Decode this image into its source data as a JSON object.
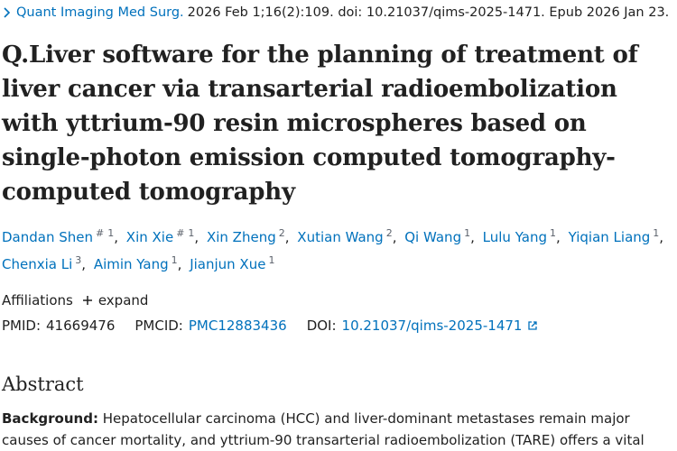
{
  "citation": {
    "journal": "Quant Imaging Med Surg.",
    "details": "2026 Feb 1;16(2):109. doi: 10.21037/qims-2025-1471. Epub 2026 Jan 23."
  },
  "title": "Q.Liver software for the planning of treatment of liver cancer via transarterial radioembolization with yttrium-90 resin microspheres based on single-photon emission computed tomography-computed tomography",
  "authors": [
    {
      "name": "Dandan Shen",
      "marks": [
        "#",
        "1"
      ]
    },
    {
      "name": "Xin Xie",
      "marks": [
        "#",
        "1"
      ]
    },
    {
      "name": "Xin Zheng",
      "marks": [
        "2"
      ]
    },
    {
      "name": "Xutian Wang",
      "marks": [
        "2"
      ]
    },
    {
      "name": "Qi Wang",
      "marks": [
        "1"
      ]
    },
    {
      "name": "Lulu Yang",
      "marks": [
        "1"
      ]
    },
    {
      "name": "Yiqian Liang",
      "marks": [
        "1"
      ]
    },
    {
      "name": "Chenxia Li",
      "marks": [
        "3"
      ]
    },
    {
      "name": "Aimin Yang",
      "marks": [
        "1"
      ]
    },
    {
      "name": "Jianjun Xue",
      "marks": [
        "1"
      ]
    }
  ],
  "affiliations": {
    "label": "Affiliations",
    "action": "expand"
  },
  "ids": {
    "pmid_label": "PMID:",
    "pmid": "41669476",
    "pmcid_label": "PMCID:",
    "pmcid": "PMC12883436",
    "doi_label": "DOI:",
    "doi": "10.21037/qims-2025-1471"
  },
  "abstract": {
    "heading": "Abstract",
    "label": "Background:",
    "text": "Hepatocellular carcinoma (HCC) and liver-dominant metastases remain major causes of cancer mortality, and yttrium-90 transarterial radioembolization (TARE) offers a vital treatment option"
  }
}
